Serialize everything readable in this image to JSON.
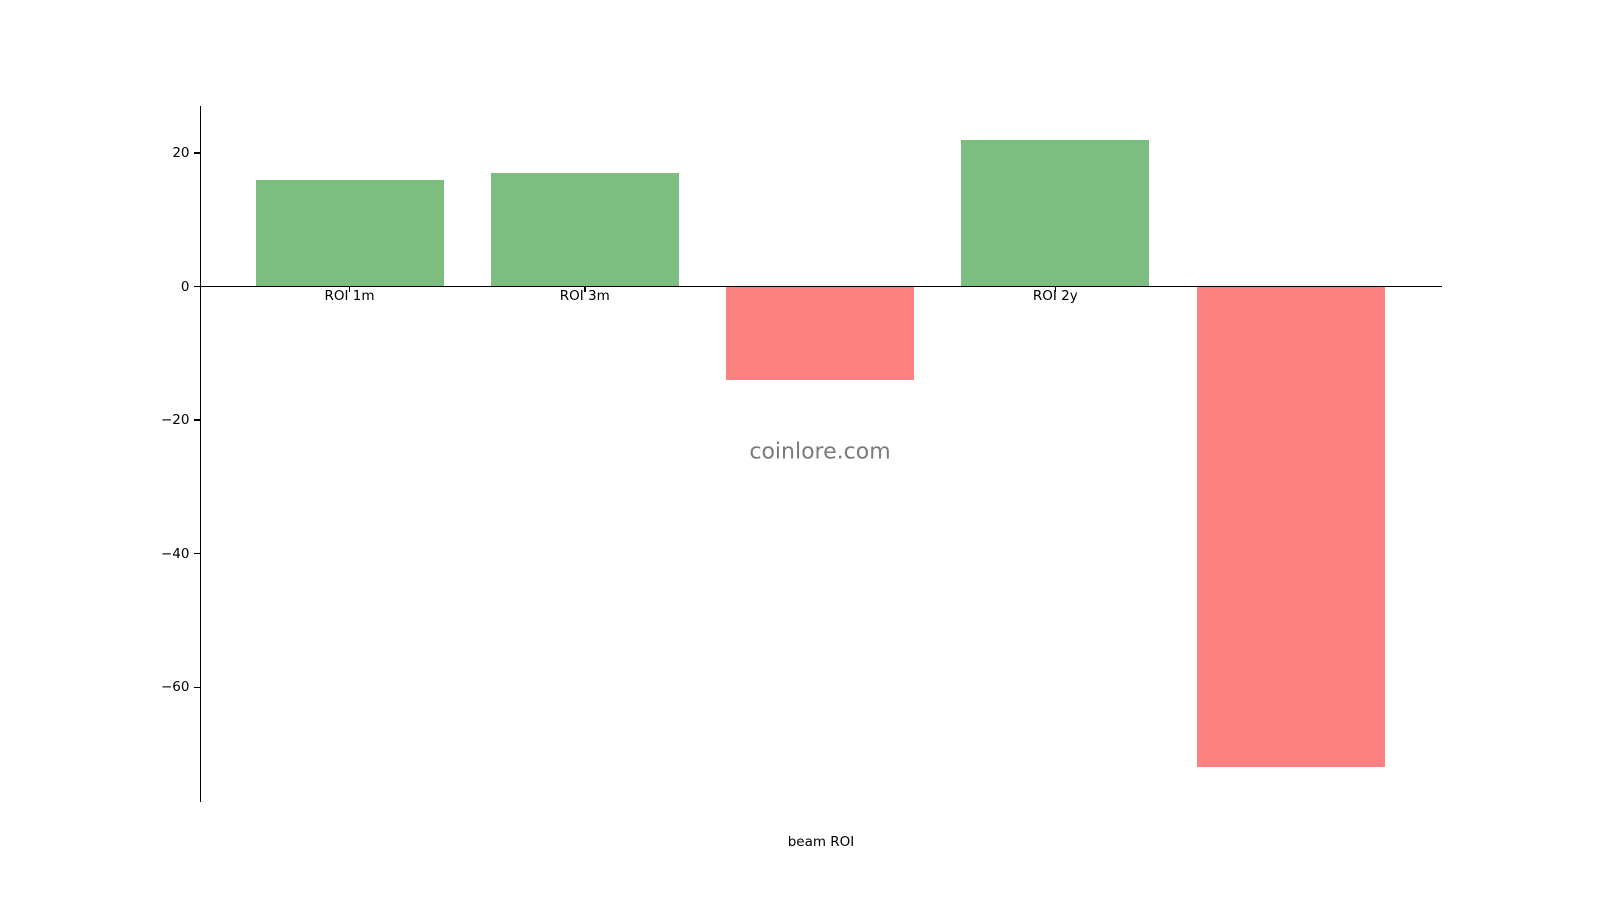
{
  "page": {
    "background_color": "#ffffff"
  },
  "chart_data": {
    "type": "bar",
    "title": "",
    "xlabel": "beam ROI",
    "ylabel": "",
    "watermark": "coinlore.com",
    "categories": [
      "ROI 1m",
      "ROI 3m",
      "",
      "ROI 2y",
      ""
    ],
    "values": [
      16,
      17,
      -14,
      22,
      -72
    ],
    "bar_colors": [
      "#7dbd7f",
      "#7dbd7f",
      "#fd8181",
      "#7dbd7f",
      "#fd8181"
    ],
    "positive_color": "#7dbd7f",
    "negative_color": "#fd8181",
    "axis_color": "#000000",
    "tick_label_color": "#000000",
    "watermark_color": "#7b7b7b",
    "y_ticks": [
      20,
      0,
      -20,
      -40,
      -60
    ],
    "y_tick_labels": [
      "20",
      "0",
      "−20",
      "−40",
      "−60"
    ],
    "ylim": [
      27,
      -77
    ],
    "grid": false,
    "legend": null,
    "notes": "Labels for the two red negative bars are hidden behind the bars and not visible"
  }
}
